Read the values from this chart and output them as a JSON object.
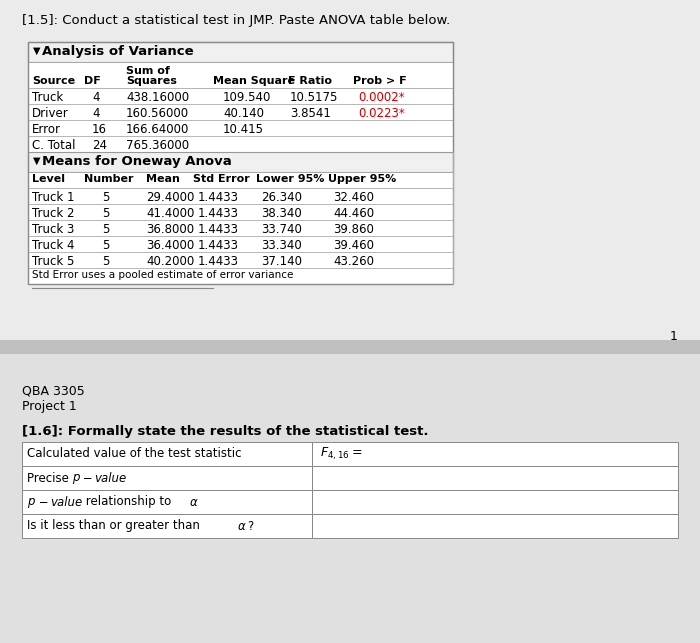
{
  "title_text": "[1.5]: Conduct a statistical test in JMP. Paste ANOVA table below.",
  "anova_header": "Analysis of Variance",
  "anova_rows": [
    [
      "Truck",
      "4",
      "438.16000",
      "109.540",
      "10.5175",
      "0.0002*"
    ],
    [
      "Driver",
      "4",
      "160.56000",
      "40.140",
      "3.8541",
      "0.0223*"
    ],
    [
      "Error",
      "16",
      "166.64000",
      "10.415",
      "",
      ""
    ],
    [
      "C. Total",
      "24",
      "765.36000",
      "",
      "",
      ""
    ]
  ],
  "means_header": "Means for Oneway Anova",
  "means_rows": [
    [
      "Truck 1",
      "5",
      "29.4000",
      "1.4433",
      "26.340",
      "32.460"
    ],
    [
      "Truck 2",
      "5",
      "41.4000",
      "1.4433",
      "38.340",
      "44.460"
    ],
    [
      "Truck 3",
      "5",
      "36.8000",
      "1.4433",
      "33.740",
      "39.860"
    ],
    [
      "Truck 4",
      "5",
      "36.4000",
      "1.4433",
      "33.340",
      "39.460"
    ],
    [
      "Truck 5",
      "5",
      "40.2000",
      "1.4433",
      "37.140",
      "43.260"
    ]
  ],
  "means_footnote": "Std Error uses a pooled estimate of error variance",
  "page_number": "1",
  "footer_line1": "QBA 3305",
  "footer_line2": "Project 1",
  "section16_title": "[1.6]: Formally state the results of the statistical test.",
  "highlight_color": "#cc0000",
  "bg_top": "#e8e8e8",
  "bg_bottom": "#d8d8d8",
  "table_bg": "#ffffff",
  "separator_color": "#aaaaaa",
  "divider_color": "#b0b0b0"
}
